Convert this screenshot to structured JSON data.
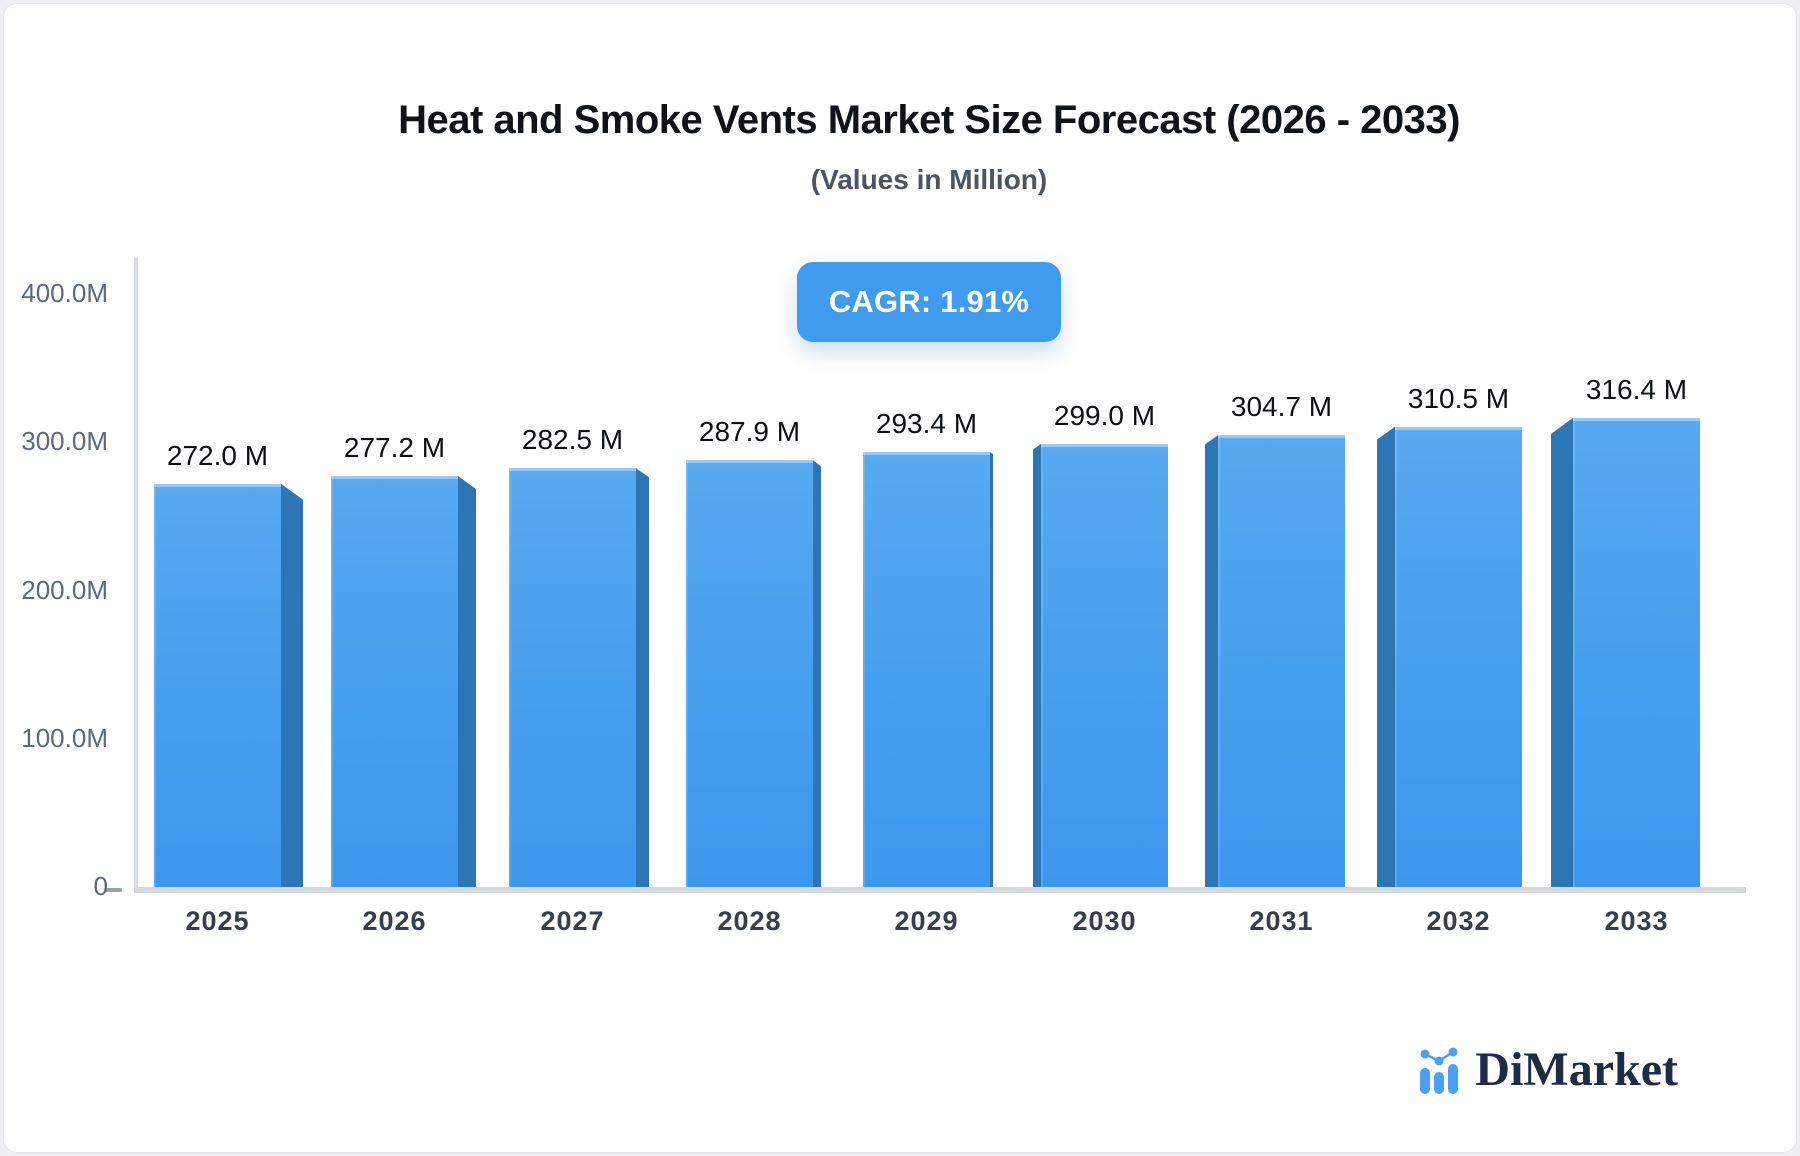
{
  "title": "Heat and Smoke Vents Market Size Forecast (2026 - 2033)",
  "subtitle": "(Values in Million)",
  "badge": {
    "label": "CAGR: 1.91%"
  },
  "logo": {
    "text": "DiMarket",
    "icon": "mini-bar-line-chart-icon"
  },
  "chart_data": {
    "type": "bar",
    "title": "Heat and Smoke Vents Market Size Forecast (2026 - 2033)",
    "subtitle": "(Values in Million)",
    "unit": "Million",
    "cagr": "1.91%",
    "categories": [
      "2025",
      "2026",
      "2027",
      "2028",
      "2029",
      "2030",
      "2031",
      "2032",
      "2033"
    ],
    "values": [
      272.0,
      277.2,
      282.5,
      287.9,
      293.4,
      299.0,
      304.7,
      310.5,
      316.4
    ],
    "value_labels": [
      "272.0 M",
      "277.2 M",
      "282.5 M",
      "287.9 M",
      "293.4 M",
      "299.0 M",
      "304.7 M",
      "310.5 M",
      "316.4 M"
    ],
    "y_tick_values": [
      400,
      300,
      200,
      100,
      0
    ],
    "y_tick_labels": [
      "400.0M",
      "300.0M",
      "200.0M",
      "100.0M",
      "0"
    ],
    "ylim": [
      0,
      400
    ],
    "grid": false,
    "legend": false,
    "bar_face_color_top": "#58a9ef",
    "bar_face_color_bottom": "#3e97ed",
    "bar_side_color": "#2d76b6",
    "axis_color": "#dadde1",
    "badge_color": "#3f9bee"
  }
}
